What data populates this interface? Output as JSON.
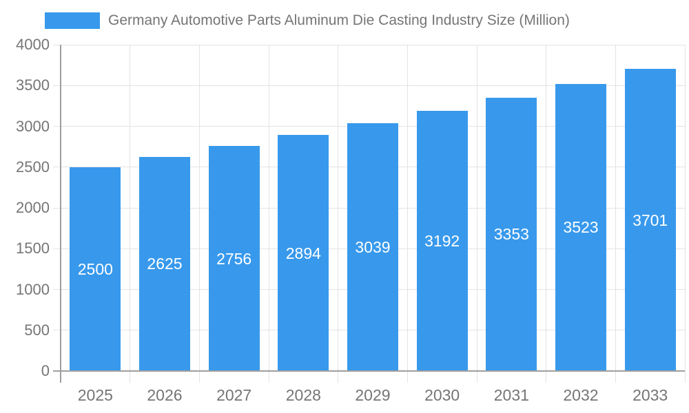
{
  "legend": {
    "label": "Germany Automotive Parts Aluminum Die Casting Industry Size (Million)"
  },
  "colors": {
    "bar": "#3899EC",
    "bar_label": "#ffffff",
    "axis_text": "#757575",
    "grid_line": "#E3E3E3",
    "axis_line": "#9E9E9E",
    "background": "#ffffff"
  },
  "chart_data": {
    "type": "bar",
    "title": "Germany Automotive Parts Aluminum Die Casting Industry Size (Million)",
    "categories": [
      "2025",
      "2026",
      "2027",
      "2028",
      "2029",
      "2030",
      "2031",
      "2032",
      "2033"
    ],
    "values": [
      2500,
      2625,
      2756,
      2894,
      3039,
      3192,
      3353,
      3523,
      3701
    ],
    "xlabel": "",
    "ylabel": "",
    "ylim": [
      0,
      4000
    ],
    "ytick_step": 500,
    "ytick_labels": [
      "0",
      "500",
      "1000",
      "1500",
      "2000",
      "2500",
      "3000",
      "3500",
      "4000"
    ],
    "grid": true,
    "legend_position": "top-left",
    "bar_labels_visible": true,
    "bar_label_position": "center"
  }
}
